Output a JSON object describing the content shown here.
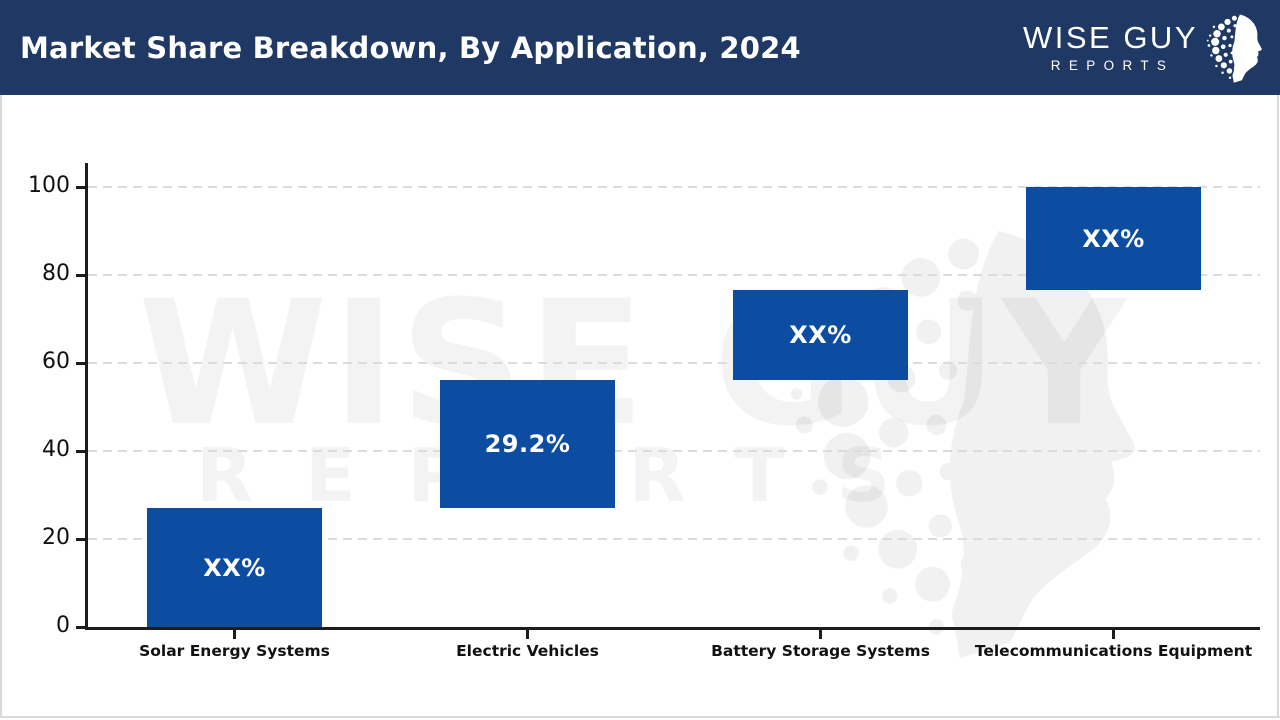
{
  "header": {
    "title": "Market Share Breakdown, By Application, 2024",
    "logo": {
      "brand_top": "WISE GUY",
      "brand_bottom": "REPORTS"
    }
  },
  "watermark": {
    "line1": "WISE GUY",
    "line2": "REPORTS"
  },
  "colors": {
    "header_bg": "#1F3864",
    "title_text": "#FFFFFF",
    "bar_fill": "#0C4DA2",
    "bar_label_text": "#FFFFFF",
    "grid_line": "#DCDCDC",
    "axis_line": "#1C1C1C",
    "tick_text": "#111111",
    "watermark_tint": "#000000",
    "frame_border": "#D9D9D9",
    "chart_bg": "#FFFFFF"
  },
  "chart_data": {
    "type": "bar",
    "subtype": "waterfall",
    "title": "Market Share Breakdown, By Application, 2024",
    "categories": [
      "Solar Energy Systems",
      "Electric Vehicles",
      "Battery Storage Systems",
      "Telecommunications Equipment"
    ],
    "segments": [
      {
        "category": "Solar Energy Systems",
        "start": 0,
        "end": 27.0,
        "label": "XX%"
      },
      {
        "category": "Electric Vehicles",
        "start": 27.0,
        "end": 56.2,
        "label": "29.2%"
      },
      {
        "category": "Battery Storage Systems",
        "start": 56.2,
        "end": 76.5,
        "label": "XX%"
      },
      {
        "category": "Telecommunications Equipment",
        "start": 76.5,
        "end": 100,
        "label": "XX%"
      }
    ],
    "xlabel": "",
    "ylabel": "",
    "ylim": [
      0,
      100
    ],
    "yticks": [
      0,
      20,
      40,
      60,
      80,
      100
    ],
    "grid": "horizontal-dashed",
    "legend": "none",
    "bar_width_fraction": 0.6,
    "units": "percent"
  }
}
